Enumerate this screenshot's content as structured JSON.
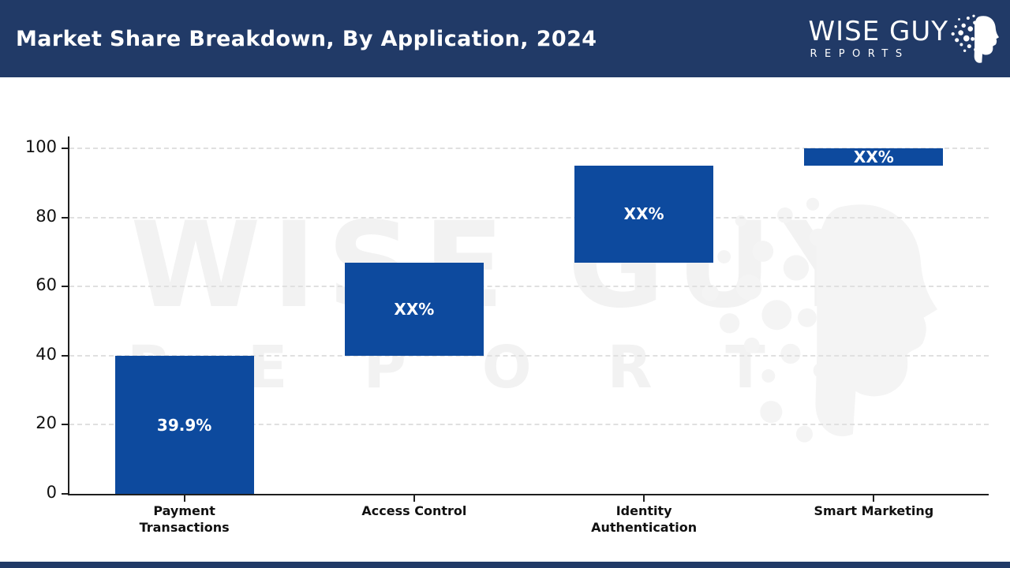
{
  "header": {
    "title": "Market Share Breakdown, By Application, 2024",
    "logo": {
      "line1": "WISE GUY",
      "line2": "REPORTS"
    }
  },
  "watermark": {
    "line1": "WISE GUY",
    "line2": "REPORTS"
  },
  "chart_data": {
    "type": "bar",
    "subtype": "waterfall",
    "title": "Market Share Breakdown, By Application, 2024",
    "categories": [
      "Payment\nTransactions",
      "Access Control",
      "Identity\nAuthentication",
      "Smart Marketing"
    ],
    "series": [
      {
        "name": "Market share (%)",
        "segments": [
          {
            "category": "Payment Transactions",
            "start": 0,
            "end": 39.9,
            "label": "39.9%"
          },
          {
            "category": "Access Control",
            "start": 39.9,
            "end": 67,
            "label": "XX%"
          },
          {
            "category": "Identity Authentication",
            "start": 67,
            "end": 95,
            "label": "XX%"
          },
          {
            "category": "Smart Marketing",
            "start": 95,
            "end": 100,
            "label": "XX%"
          }
        ]
      }
    ],
    "xlabel": "",
    "ylabel": "",
    "y_ticks": [
      0,
      20,
      40,
      60,
      80,
      100
    ],
    "ylim": [
      0,
      103.5
    ],
    "grid": true,
    "legend": false,
    "colors": {
      "bar": "#0D4A9E",
      "bar_label": "#FFFFFF",
      "header_bg": "#213A67",
      "gridline": "#E0E0E0",
      "axis": "#1F1F1F",
      "watermark": "#F2F2F2"
    }
  }
}
